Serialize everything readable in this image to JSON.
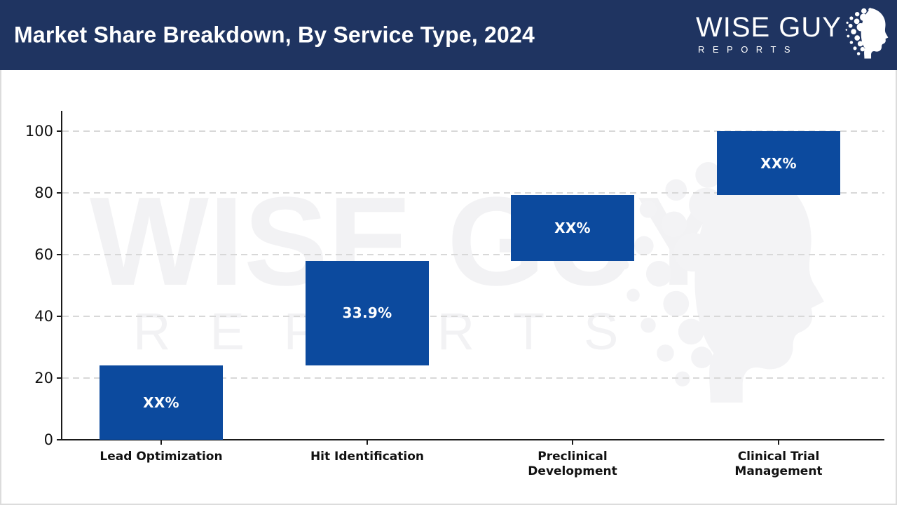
{
  "header": {
    "title": "Market Share Breakdown, By Service Type, 2024",
    "logo": {
      "wordmark": "WISE GUY",
      "sub": "REPORTS",
      "icon": "dotted-face-profile-icon"
    }
  },
  "watermark": {
    "wordmark": "WISE GUY",
    "sub": "REPORTS",
    "icon": "dotted-face-profile-icon"
  },
  "chart_data": {
    "type": "bar",
    "subtype": "waterfall",
    "title": "Market Share Breakdown, By Service Type, 2024",
    "categories": [
      "Lead Optimization",
      "Hit Identification",
      "Preclinical Development",
      "Clinical Trial Management"
    ],
    "xtick_lines": [
      [
        "Lead Optimization"
      ],
      [
        "Hit Identification"
      ],
      [
        "Preclinical",
        "Development"
      ],
      [
        "Clinical Trial",
        "Management"
      ]
    ],
    "segments": [
      {
        "category": "Lead Optimization",
        "start": 0,
        "end": 24.1,
        "label": "XX%"
      },
      {
        "category": "Hit Identification",
        "start": 24.1,
        "end": 58.0,
        "label": "33.9%"
      },
      {
        "category": "Preclinical Development",
        "start": 58.0,
        "end": 79.3,
        "label": "XX%"
      },
      {
        "category": "Clinical Trial Management",
        "start": 79.3,
        "end": 100,
        "label": "XX%"
      }
    ],
    "yticks": [
      0,
      20,
      40,
      60,
      80,
      100
    ],
    "ylim": [
      0,
      100
    ],
    "xlabel": "",
    "ylabel": "",
    "grid": "horizontal-dashed",
    "legend_position": "none",
    "bar_color": "#0c4a9e",
    "bar_label_color": "#ffffff"
  },
  "colors": {
    "header_bg": "#1f3461",
    "bar": "#0c4a9e",
    "grid": "#d8d8d8",
    "axis": "#1a1a1a",
    "tick_text": "#111111",
    "watermark": "#f2f2f4",
    "frame_border": "#dcdcdc",
    "background": "#ffffff"
  }
}
